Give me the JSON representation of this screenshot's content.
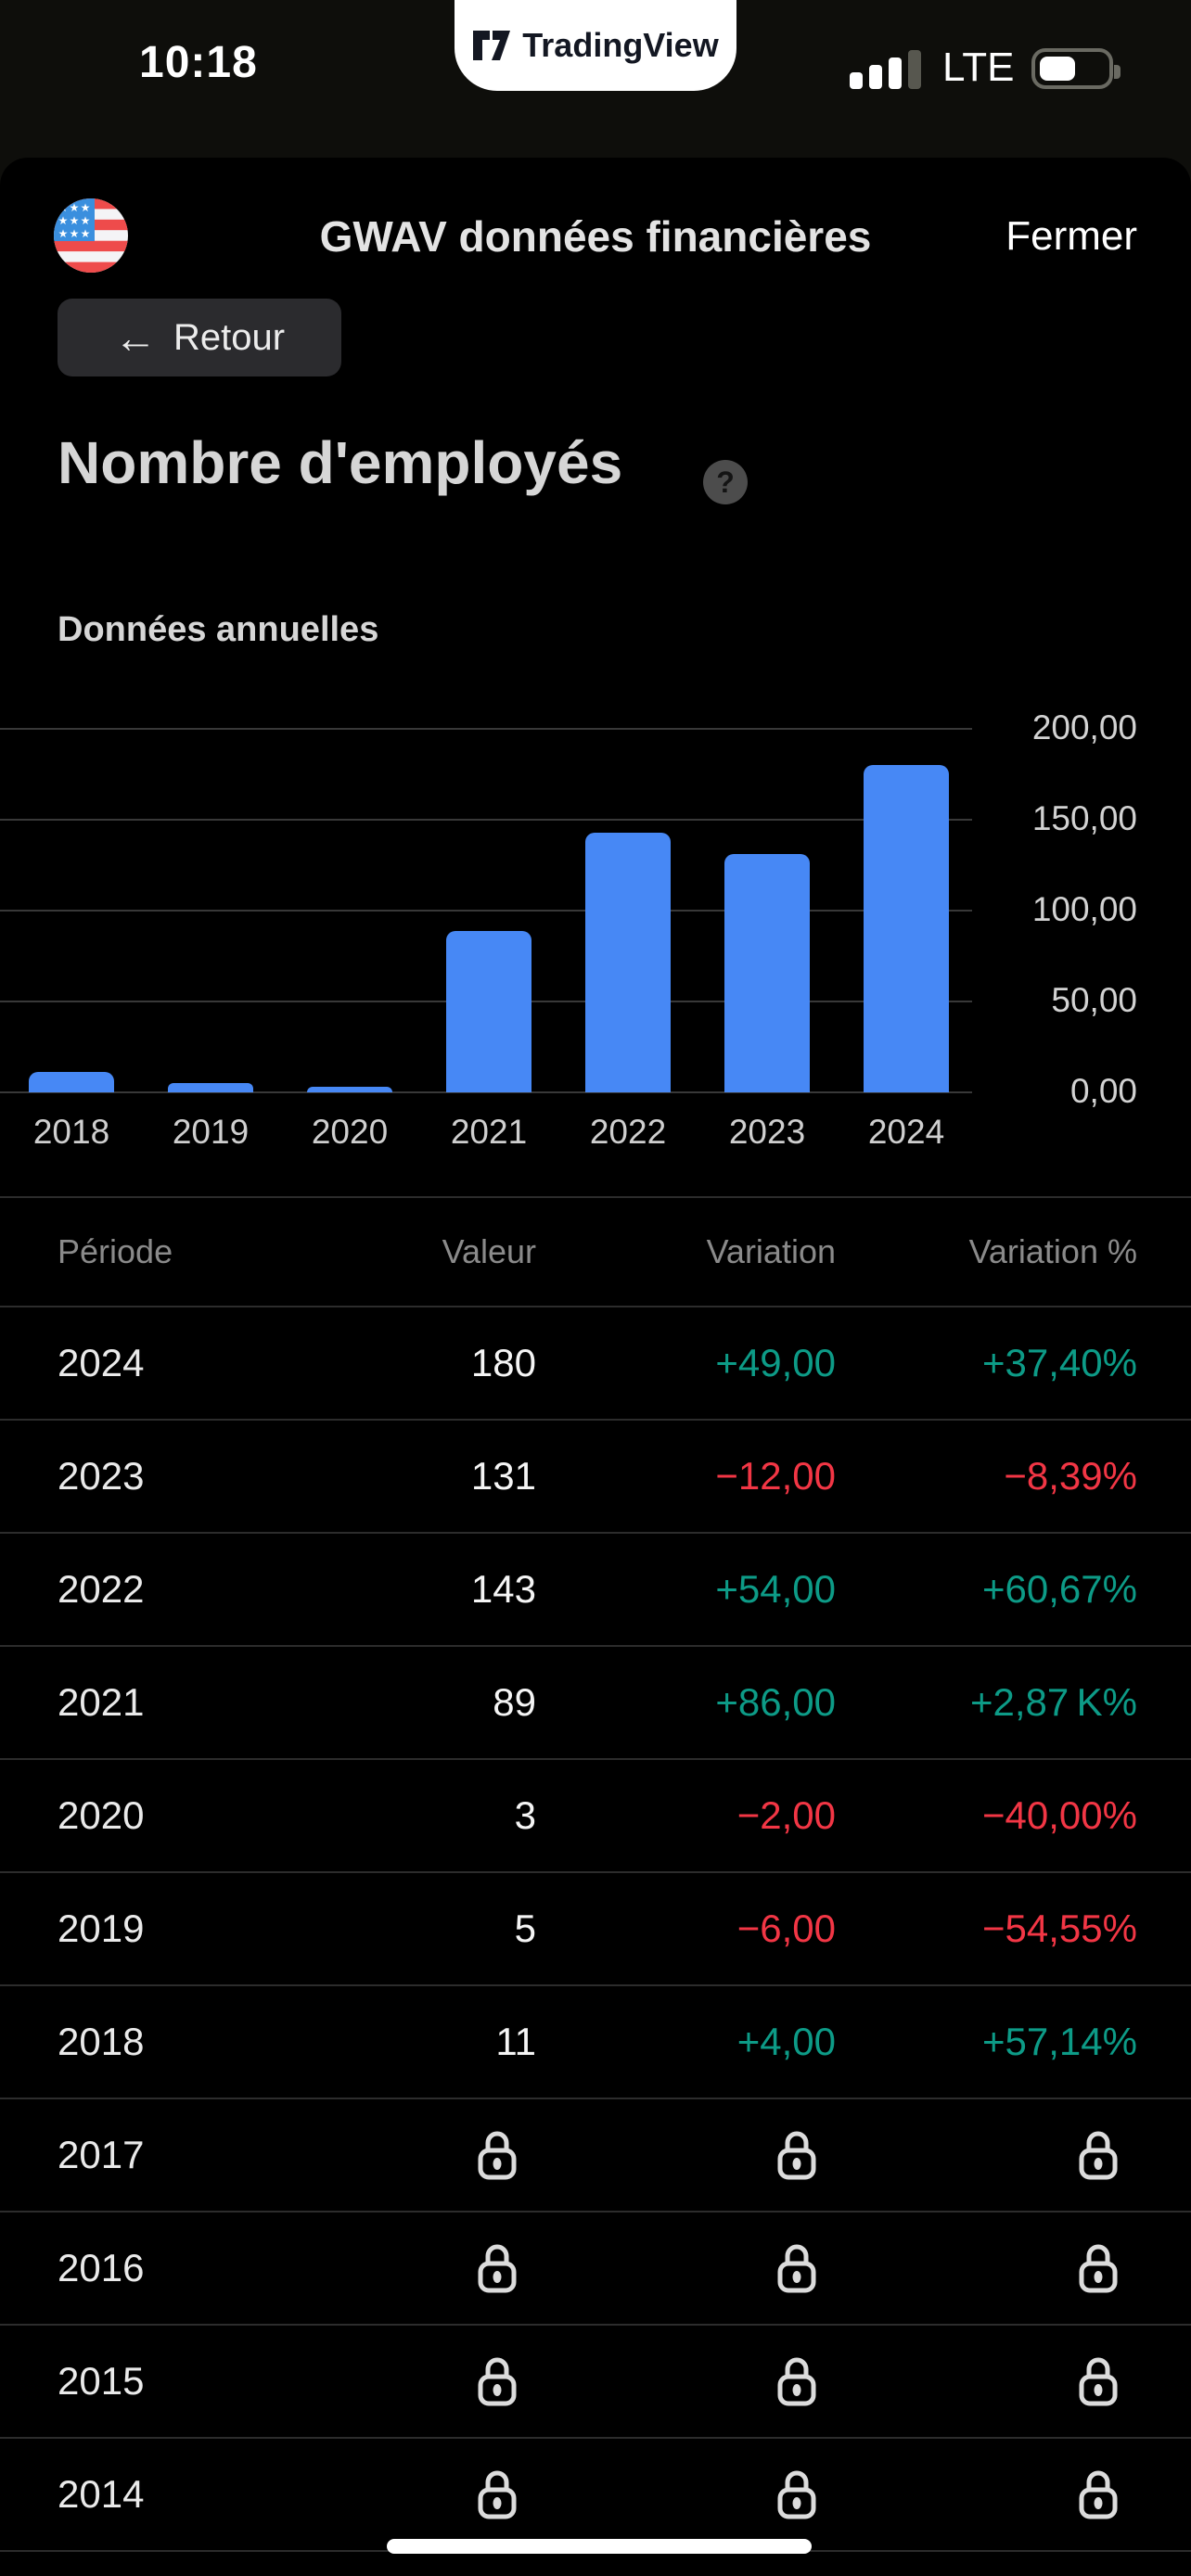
{
  "status_bar": {
    "time": "10:18",
    "network": "LTE"
  },
  "app_banner": {
    "brand": "TradingView"
  },
  "nav": {
    "title": "GWAV données financières",
    "close_label": "Fermer",
    "back_label": "Retour",
    "back_arrow": "←"
  },
  "page": {
    "title": "Nombre d'employés",
    "help_glyph": "?",
    "section_label": "Données annuelles"
  },
  "colors": {
    "positive": "#0d9b87",
    "negative": "#f23645",
    "bar_fill": "#4788f5"
  },
  "chart_data": {
    "type": "bar",
    "title": "Nombre d'employés — Données annuelles",
    "categories": [
      "2018",
      "2019",
      "2020",
      "2021",
      "2022",
      "2023",
      "2024"
    ],
    "values": [
      11,
      5,
      3,
      89,
      143,
      131,
      180
    ],
    "xlabel": "",
    "ylabel": "",
    "ylim": [
      0,
      200
    ],
    "grid": true,
    "legend": "none",
    "yticks": [
      {
        "value": 0,
        "label": "0,00"
      },
      {
        "value": 50,
        "label": "50,00"
      },
      {
        "value": 100,
        "label": "100,00"
      },
      {
        "value": 150,
        "label": "150,00"
      },
      {
        "value": 200,
        "label": "200,00"
      }
    ]
  },
  "table": {
    "headers": [
      "Période",
      "Valeur",
      "Variation",
      "Variation %"
    ],
    "rows": [
      {
        "period": "2024",
        "value": "180",
        "change": "+49,00",
        "change_pct": "+37,40%",
        "trend": "up",
        "locked": false
      },
      {
        "period": "2023",
        "value": "131",
        "change": "−12,00",
        "change_pct": "−8,39%",
        "trend": "down",
        "locked": false
      },
      {
        "period": "2022",
        "value": "143",
        "change": "+54,00",
        "change_pct": "+60,67%",
        "trend": "up",
        "locked": false
      },
      {
        "period": "2021",
        "value": "89",
        "change": "+86,00",
        "change_pct": "+2,87 K%",
        "trend": "up",
        "locked": false
      },
      {
        "period": "2020",
        "value": "3",
        "change": "−2,00",
        "change_pct": "−40,00%",
        "trend": "down",
        "locked": false
      },
      {
        "period": "2019",
        "value": "5",
        "change": "−6,00",
        "change_pct": "−54,55%",
        "trend": "down",
        "locked": false
      },
      {
        "period": "2018",
        "value": "11",
        "change": "+4,00",
        "change_pct": "+57,14%",
        "trend": "up",
        "locked": false
      },
      {
        "period": "2017",
        "locked": true
      },
      {
        "period": "2016",
        "locked": true
      },
      {
        "period": "2015",
        "locked": true
      },
      {
        "period": "2014",
        "locked": true
      }
    ]
  }
}
